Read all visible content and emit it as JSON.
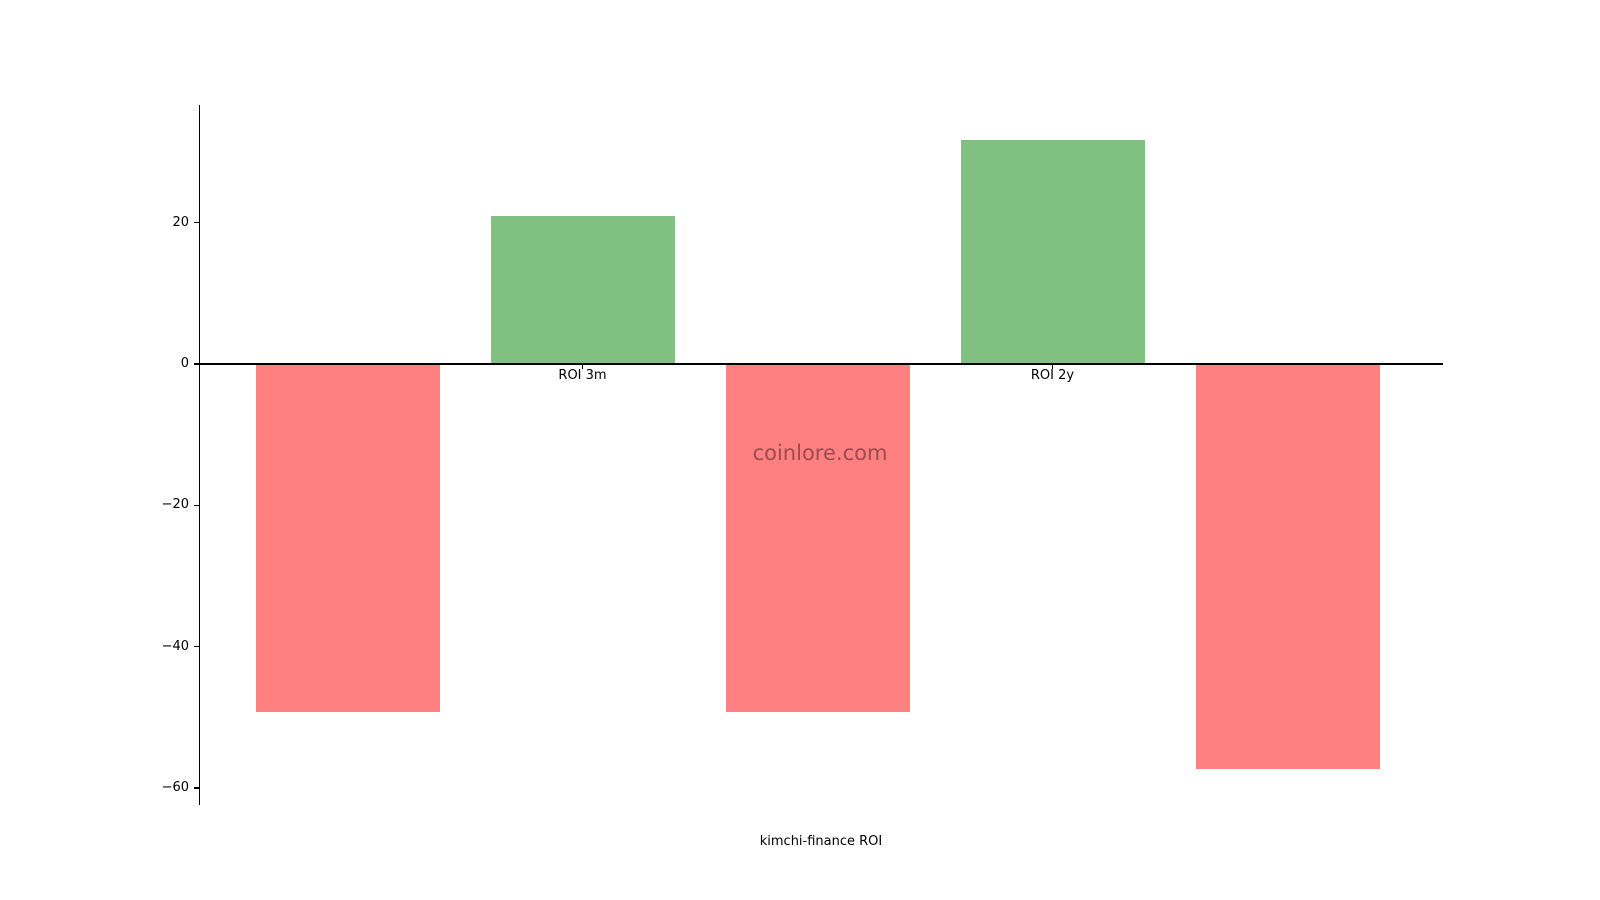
{
  "watermark": {
    "text": "coinlore.com",
    "color": "#9e4b4f"
  },
  "colors": {
    "positive": "#80c080",
    "negative": "#ff8080",
    "axis": "#000000",
    "text": "#000000"
  },
  "chart_data": {
    "type": "bar",
    "title": "kimchi-finance ROI",
    "categories": [
      "",
      "ROI 3m",
      "",
      "ROI 2y",
      ""
    ],
    "values": [
      -49.2,
      20.9,
      -49.2,
      31.7,
      -57.3
    ],
    "bar_color_roles": [
      "negative",
      "positive",
      "negative",
      "positive",
      "negative"
    ],
    "yticks": [
      20,
      0,
      -20,
      -40,
      -60
    ],
    "ylim": [
      -62.4,
      36.6
    ],
    "xlabel": "",
    "ylabel": "",
    "grid": false,
    "legend": null
  }
}
